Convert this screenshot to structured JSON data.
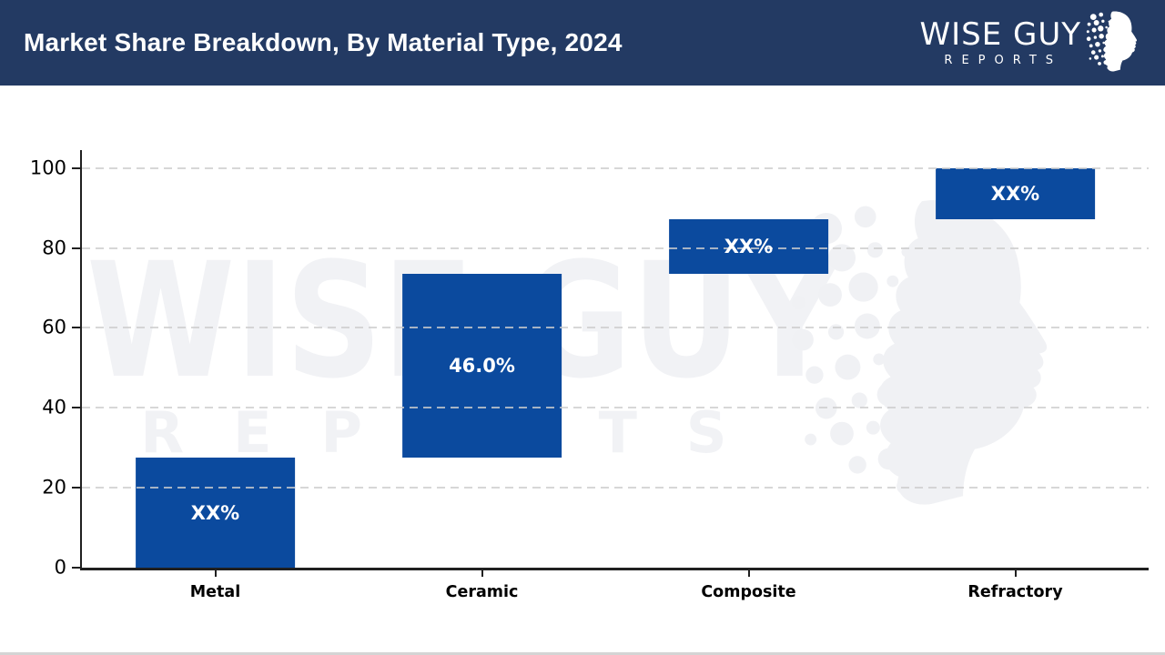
{
  "header": {
    "title": "Market Share Breakdown, By Material Type, 2024",
    "bg_color": "#233a63",
    "logo": {
      "wordmark": "WISE GUY",
      "subtext": "REPORTS"
    }
  },
  "watermark": {
    "line1": "WISE GUY",
    "line2": "REPORTS"
  },
  "chart_data": {
    "type": "bar",
    "subtype": "waterfall-cumulative",
    "title": "Market Share Breakdown, By Material Type, 2024",
    "categories": [
      "Metal",
      "Ceramic",
      "Composite",
      "Refractory"
    ],
    "segments": [
      {
        "category": "Metal",
        "start": 0,
        "end": 27.5,
        "label": "XX%"
      },
      {
        "category": "Ceramic",
        "start": 27.5,
        "end": 73.5,
        "label": "46.0%"
      },
      {
        "category": "Composite",
        "start": 73.5,
        "end": 87.2,
        "label": "XX%"
      },
      {
        "category": "Refractory",
        "start": 87.2,
        "end": 100,
        "label": "XX%"
      }
    ],
    "y_ticks": [
      0,
      20,
      40,
      60,
      80,
      100
    ],
    "ylim": [
      0,
      104.5
    ],
    "xlabel": "",
    "ylabel": "",
    "grid": "dashed-horizontal",
    "grid_color": "#d9d9d9",
    "axis_color": "#202020",
    "legend": "none",
    "bar_color": "#0b4a9e",
    "bar_label_color": "#ffffff"
  }
}
